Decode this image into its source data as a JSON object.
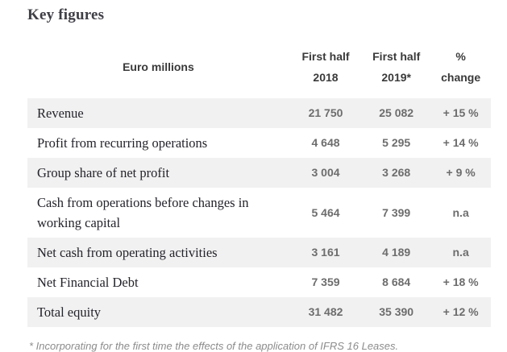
{
  "title": "Key figures",
  "table": {
    "columns": [
      {
        "label": "Euro millions"
      },
      {
        "label": "First half\n2018"
      },
      {
        "label": "First half\n2019*"
      },
      {
        "label": "%\nchange"
      }
    ],
    "rows": [
      {
        "label": "Revenue",
        "h1_2018": "21 750",
        "h1_2019": "25 082",
        "change": "+ 15 %"
      },
      {
        "label": "Profit from recurring operations",
        "h1_2018": "4 648",
        "h1_2019": "5 295",
        "change": "+ 14 %"
      },
      {
        "label": "Group share of net profit",
        "h1_2018": "3 004",
        "h1_2019": "3 268",
        "change": "+ 9 %"
      },
      {
        "label": "Cash from operations before changes in working capital",
        "h1_2018": "5 464",
        "h1_2019": "7 399",
        "change": "n.a"
      },
      {
        "label": "Net cash from operating activities",
        "h1_2018": "3 161",
        "h1_2019": "4 189",
        "change": "n.a"
      },
      {
        "label": "Net Financial Debt",
        "h1_2018": "7 359",
        "h1_2019": "8 684",
        "change": "+ 18 %"
      },
      {
        "label": "Total equity",
        "h1_2018": "31 482",
        "h1_2019": "35 390",
        "change": "+ 12 %"
      }
    ]
  },
  "footnote": "* Incorporating for the first time the effects of the application of IFRS 16 Leases.",
  "colors": {
    "row_alt_background": "#f1f1f1",
    "header_text": "#3a3a3a",
    "label_text": "#24242c",
    "value_text": "#6d6d6d",
    "footnote_text": "#8c8c8c",
    "page_background": "#ffffff"
  }
}
